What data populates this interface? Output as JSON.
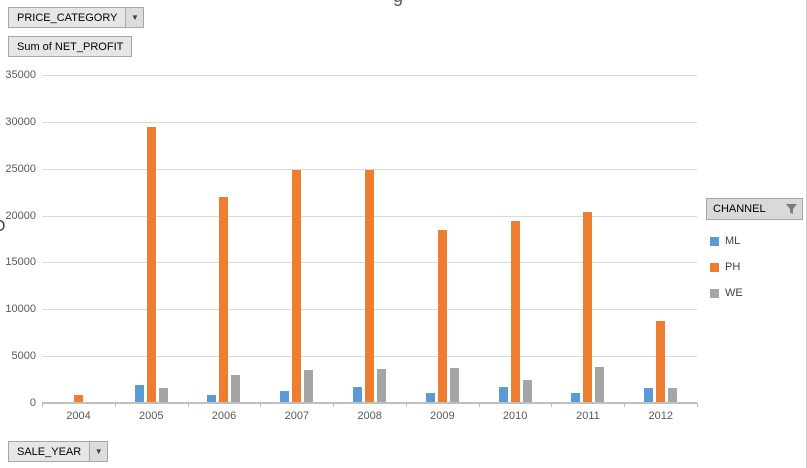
{
  "filters": {
    "price_category_label": "PRICE_CATEGORY",
    "value_field_label": "Sum of NET_PROFIT",
    "sale_year_label": "SALE_YEAR",
    "channel_label": "CHANNEL",
    "dropdown_glyph": "▼"
  },
  "fragments": {
    "title_fragment": "g",
    "left_axis_fragment": "O"
  },
  "legend": {
    "title": "CHANNEL",
    "items": [
      {
        "label": "ML",
        "color": "#5b9bd5"
      },
      {
        "label": "PH",
        "color": "#ed7d31"
      },
      {
        "label": "WE",
        "color": "#a5a5a5"
      }
    ]
  },
  "chart_data": {
    "type": "bar",
    "title": "",
    "xlabel": "",
    "ylabel": "",
    "categories": [
      "2004",
      "2005",
      "2006",
      "2007",
      "2008",
      "2009",
      "2010",
      "2011",
      "2012"
    ],
    "series": [
      {
        "name": "ML",
        "color": "#5b9bd5",
        "values": [
          0,
          1800,
          700,
          1200,
          1600,
          1000,
          1600,
          1000,
          1500
        ]
      },
      {
        "name": "PH",
        "color": "#ed7d31",
        "values": [
          700,
          29300,
          21900,
          24800,
          24800,
          18400,
          19300,
          20300,
          8600
        ]
      },
      {
        "name": "WE",
        "color": "#a5a5a5",
        "values": [
          0,
          1500,
          2900,
          3400,
          3500,
          3600,
          2400,
          3700,
          1500
        ]
      }
    ],
    "ylim": [
      0,
      35000
    ],
    "yticks": [
      0,
      5000,
      10000,
      15000,
      20000,
      25000,
      30000,
      35000
    ],
    "grid": true,
    "legend_position": "right"
  }
}
